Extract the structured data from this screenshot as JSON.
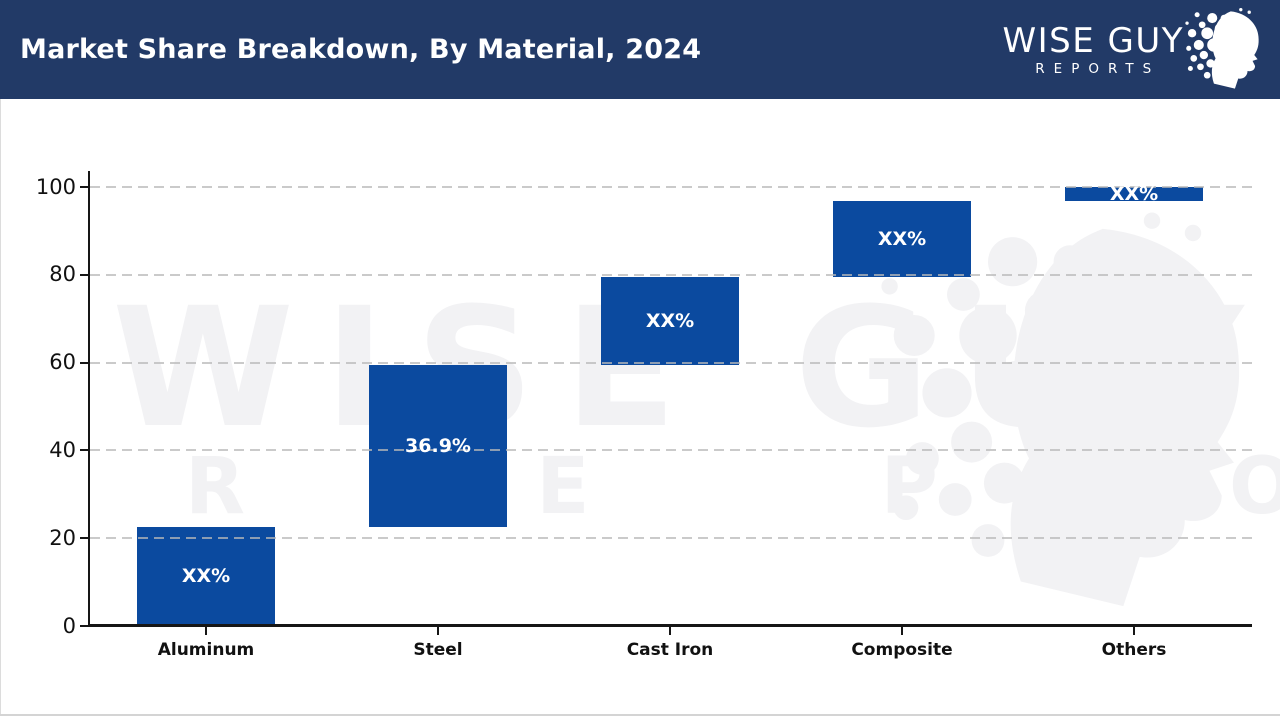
{
  "header": {
    "title": "Market Share Breakdown, By Material, 2024",
    "brand_line1": "WISE GUY",
    "brand_line2": "REPORTS",
    "bg_color": "#223a67"
  },
  "watermark": {
    "line1": "WISE GUY",
    "line2": "R E P O R T S"
  },
  "chart_data": {
    "type": "bar",
    "subtype": "waterfall",
    "title": "Market Share Breakdown, By Material, 2024",
    "xlabel": "",
    "ylabel": "",
    "categories": [
      "Aluminum",
      "Steel",
      "Cast Iron",
      "Composite",
      "Others"
    ],
    "segments": [
      {
        "category": "Aluminum",
        "start": 0,
        "end": 22.6,
        "label": "XX%"
      },
      {
        "category": "Steel",
        "start": 22.6,
        "end": 59.5,
        "label": "36.9%",
        "value": 36.9
      },
      {
        "category": "Cast Iron",
        "start": 59.5,
        "end": 79.6,
        "label": "XX%"
      },
      {
        "category": "Composite",
        "start": 79.6,
        "end": 96.9,
        "label": "XX%"
      },
      {
        "category": "Others",
        "start": 96.9,
        "end": 100,
        "label": "XX%"
      }
    ],
    "yticks": [
      0,
      20,
      40,
      60,
      80,
      100
    ],
    "ylim": [
      0,
      105
    ],
    "grid": {
      "axis": "y",
      "style": "dashed",
      "color": "#d9d9d9",
      "on_top_of_bars": true
    },
    "bar_color": "#0b4a9f",
    "bar_label_color": "#ffffff",
    "legend": null
  }
}
